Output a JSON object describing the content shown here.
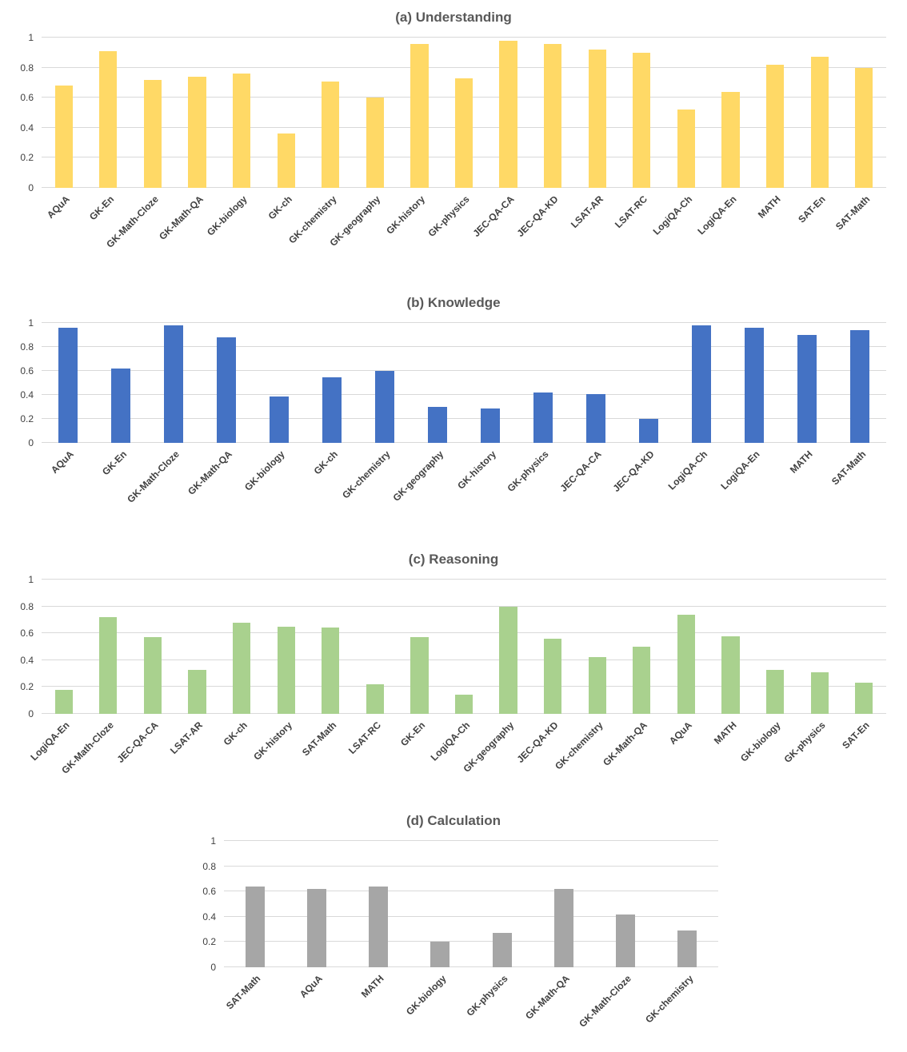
{
  "page": {
    "background": "#ffffff"
  },
  "chart_data": [
    {
      "type": "bar",
      "title": "(a) Understanding",
      "color": "#FFD966",
      "categories": [
        "AQuA",
        "GK-En",
        "GK-Math-Cloze",
        "GK-Math-QA",
        "GK-biology",
        "GK-ch",
        "GK-chemistry",
        "GK-geography",
        "GK-history",
        "GK-physics",
        "JEC-QA-CA",
        "JEC-QA-KD",
        "LSAT-AR",
        "LSAT-RC",
        "LogiQA-Ch",
        "LogiQA-En",
        "MATH",
        "SAT-En",
        "SAT-Math"
      ],
      "values": [
        0.68,
        0.91,
        0.72,
        0.74,
        0.76,
        0.36,
        0.71,
        0.6,
        0.96,
        0.73,
        0.98,
        0.96,
        0.92,
        0.9,
        0.52,
        0.64,
        0.82,
        0.87,
        0.8
      ],
      "ylim": [
        0,
        1
      ],
      "yticks": [
        0,
        0.2,
        0.4,
        0.6,
        0.8,
        1
      ],
      "grid": true,
      "legend": "none"
    },
    {
      "type": "bar",
      "title": "(b) Knowledge",
      "color": "#4472C4",
      "categories": [
        "AQuA",
        "GK-En",
        "GK-Math-Cloze",
        "GK-Math-QA",
        "GK-biology",
        "GK-ch",
        "GK-chemistry",
        "GK-geography",
        "GK-history",
        "GK-physics",
        "JEC-QA-CA",
        "JEC-QA-KD",
        "LogiQA-Ch",
        "LogiQA-En",
        "MATH",
        "SAT-Math"
      ],
      "values": [
        0.96,
        0.62,
        0.98,
        0.88,
        0.39,
        0.55,
        0.6,
        0.3,
        0.29,
        0.42,
        0.41,
        0.2,
        0.98,
        0.96,
        0.9,
        0.94
      ],
      "ylim": [
        0,
        1
      ],
      "yticks": [
        0,
        0.2,
        0.4,
        0.6,
        0.8,
        1
      ],
      "grid": true,
      "legend": "none"
    },
    {
      "type": "bar",
      "title": "(c) Reasoning",
      "color": "#A9D18E",
      "categories": [
        "LogiQA-En",
        "GK-Math-Cloze",
        "JEC-QA-CA",
        "LSAT-AR",
        "GK-ch",
        "GK-history",
        "SAT-Math",
        "LSAT-RC",
        "GK-En",
        "LogiQA-Ch",
        "GK-geography",
        "JEC-QA-KD",
        "GK-chemistry",
        "GK-Math-QA",
        "AQuA",
        "MATH",
        "GK-biology",
        "GK-physics",
        "SAT-En"
      ],
      "values": [
        0.18,
        0.72,
        0.57,
        0.33,
        0.68,
        0.65,
        0.64,
        0.22,
        0.57,
        0.14,
        0.8,
        0.56,
        0.42,
        0.5,
        0.74,
        0.58,
        0.33,
        0.31,
        0.23
      ],
      "ylim": [
        0,
        1
      ],
      "yticks": [
        0,
        0.2,
        0.4,
        0.6,
        0.8,
        1
      ],
      "grid": true,
      "legend": "none"
    },
    {
      "type": "bar",
      "title": "(d) Calculation",
      "color": "#A6A6A6",
      "categories": [
        "SAT-Math",
        "AQuA",
        "MATH",
        "GK-biology",
        "GK-physics",
        "GK-Math-QA",
        "GK-Math-Cloze",
        "GK-chemistry"
      ],
      "values": [
        0.64,
        0.62,
        0.64,
        0.2,
        0.27,
        0.62,
        0.42,
        0.29
      ],
      "ylim": [
        0,
        1
      ],
      "yticks": [
        0,
        0.2,
        0.4,
        0.6,
        0.8,
        1
      ],
      "grid": true,
      "legend": "none"
    }
  ]
}
